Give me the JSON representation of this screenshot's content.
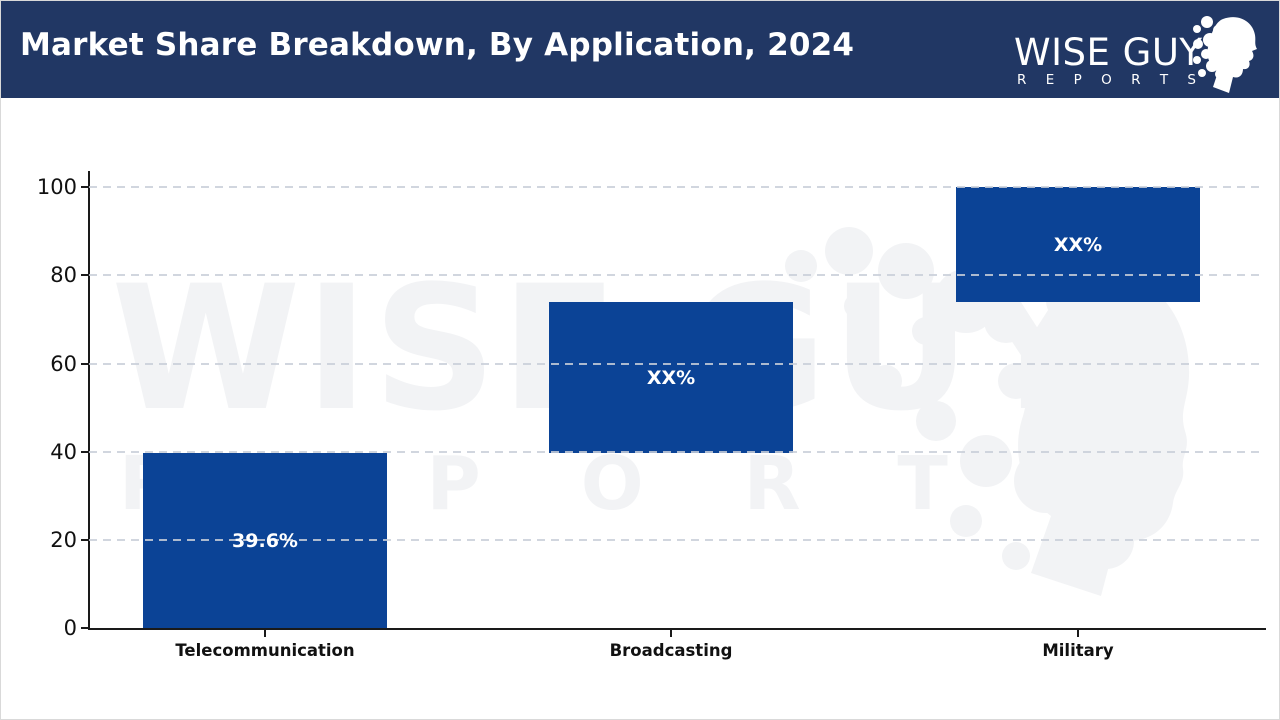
{
  "header": {
    "title": "Market Share Breakdown, By Application, 2024",
    "logo": {
      "line1": "WISE GUY",
      "line2": "REPORTS"
    }
  },
  "watermark": {
    "line1": "WISE GUY",
    "line2": "REPORTS"
  },
  "chart_data": {
    "type": "bar",
    "variant": "stacked-waterfall",
    "title": "Market Share Breakdown, By Application, 2024",
    "categories": [
      "Telecommunication",
      "Broadcasting",
      "Military"
    ],
    "segments": [
      {
        "category": "Telecommunication",
        "start": 0,
        "end": 39.6,
        "label": "39.6%"
      },
      {
        "category": "Broadcasting",
        "start": 39.6,
        "end": 74.0,
        "label": "XX%"
      },
      {
        "category": "Military",
        "start": 74.0,
        "end": 100.0,
        "label": "XX%"
      }
    ],
    "yticks": [
      0,
      20,
      40,
      60,
      80,
      100
    ],
    "ylim": [
      0,
      100
    ],
    "grid": true,
    "grid_style": "dashed",
    "legend": false,
    "bar_color": "#0b4396",
    "label_color": "#ffffff"
  },
  "colors": {
    "header_bg": "#213764",
    "bar": "#0b4396",
    "axis": "#1a1a1a",
    "watermark": "#f2f3f5"
  }
}
